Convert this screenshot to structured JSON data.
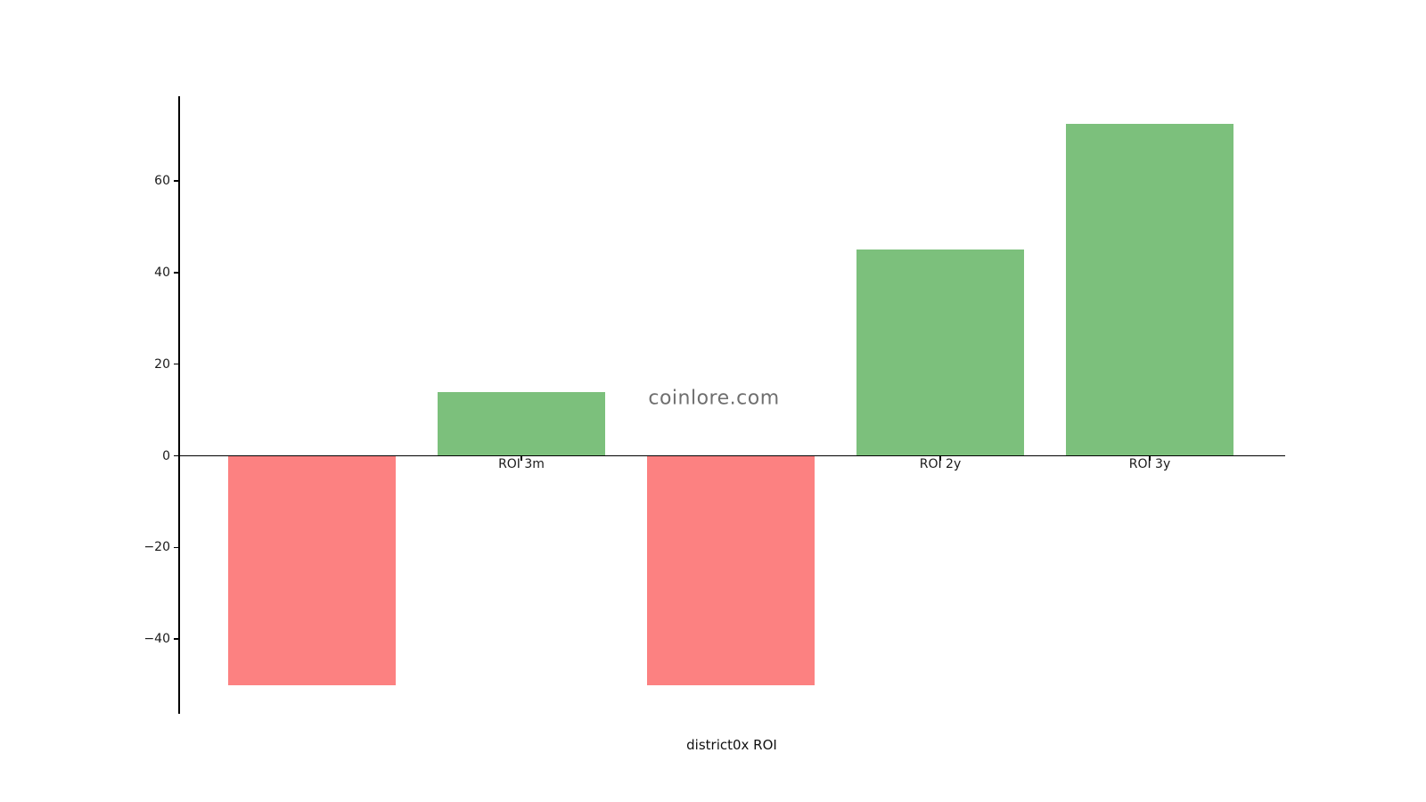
{
  "page": {
    "watermark": "coinlore.com",
    "footer_label": "district0x ROI"
  },
  "colors": {
    "positive_bar": "#7cc07c",
    "negative_bar": "#fc8181",
    "axis": "#000000",
    "tick_label": "#1a1a1a",
    "watermark": "#6f6f6f"
  },
  "chart_data": {
    "type": "bar",
    "title": "district0x ROI",
    "xlabel": "district0x ROI",
    "ylabel": "",
    "categories": [
      "",
      "ROI 3m",
      "",
      "ROI 2y",
      "ROI 3y"
    ],
    "values": [
      -50,
      14,
      -50,
      45,
      72.5
    ],
    "bar_color_roles": [
      "negative",
      "positive",
      "negative",
      "positive",
      "positive"
    ],
    "bar_names": [
      "bar-1-negative",
      "bar-roi-3m",
      "bar-3-negative",
      "bar-roi-2y",
      "bar-roi-3y"
    ],
    "ytick_values": [
      60,
      40,
      20,
      0,
      -20,
      -40
    ],
    "ytick_labels": [
      "60",
      "40",
      "20",
      "0",
      "−20",
      "−40"
    ],
    "ylim": [
      -56.5,
      78.5
    ],
    "grid": false,
    "legend": false,
    "watermark": "coinlore.com",
    "note_hidden_labels": "x tick marks and labels under the two negative bars are covered by the bars themselves"
  }
}
